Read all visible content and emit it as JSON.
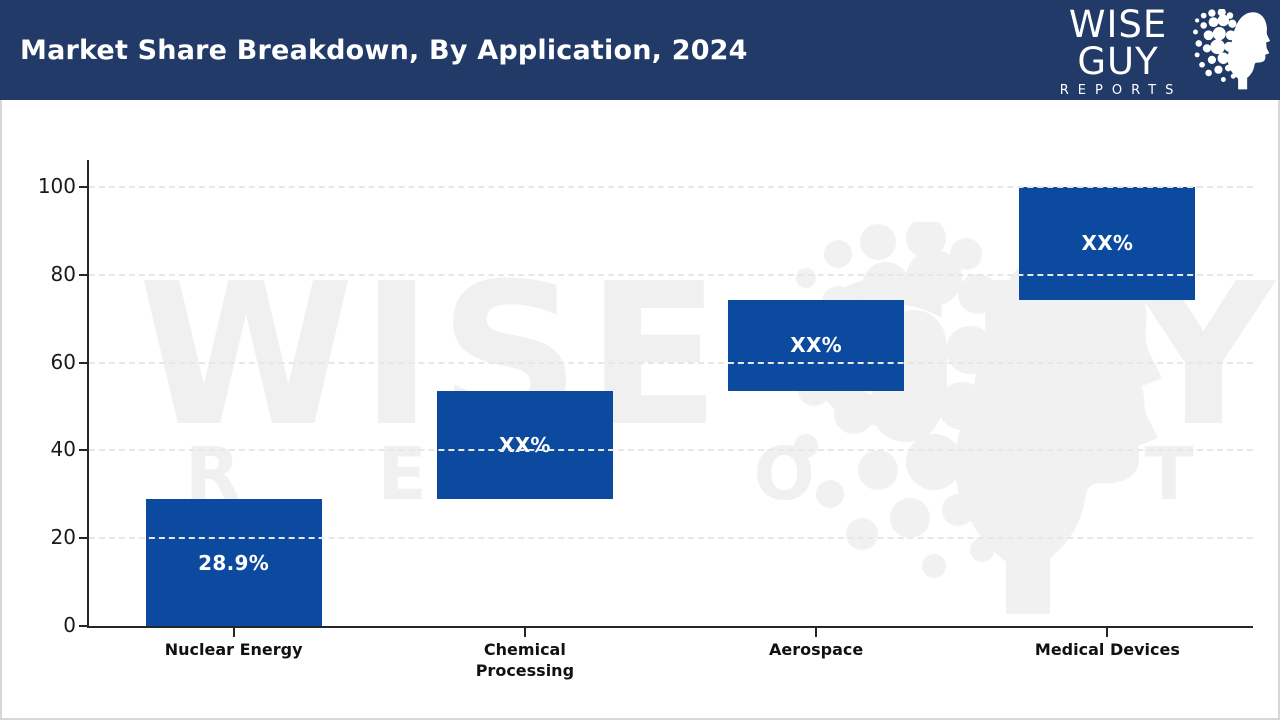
{
  "header": {
    "title": "Market Share Breakdown, By Application, 2024",
    "logo": {
      "line1": "WISE GUY",
      "line2": "REPORTS"
    }
  },
  "watermark": {
    "line1": "WISE GUY",
    "line2": "R E P O R T S"
  },
  "chart_data": {
    "type": "bar",
    "subtype": "waterfall",
    "title": "Market Share Breakdown, By Application, 2024",
    "categories": [
      "Nuclear Energy",
      "Chemical\nProcessing",
      "Aerospace",
      "Medical Devices"
    ],
    "segments": [
      {
        "category": "Nuclear Energy",
        "start": 0,
        "end": 28.9,
        "label": "28.9%"
      },
      {
        "category": "Chemical Processing",
        "start": 28.9,
        "end": 53.5,
        "label": "XX%"
      },
      {
        "category": "Aerospace",
        "start": 53.5,
        "end": 74.3,
        "label": "XX%"
      },
      {
        "category": "Medical Devices",
        "start": 74.3,
        "end": 100,
        "label": "XX%"
      }
    ],
    "xlabel": "",
    "ylabel": "",
    "yticks": [
      0,
      20,
      40,
      60,
      80,
      100
    ],
    "ylim": [
      0,
      106
    ],
    "grid": "horizontal-dashed",
    "legend": "none"
  },
  "colors": {
    "header_bg": "#213a68",
    "bar_blue": "#0b4a9e",
    "bar_label_white": "#ffffff",
    "axis_black": "#262626",
    "grid_gray": "#e7e7e7",
    "watermark_gray": "#f0f0f0",
    "frame_gray": "#d7d7d7"
  }
}
